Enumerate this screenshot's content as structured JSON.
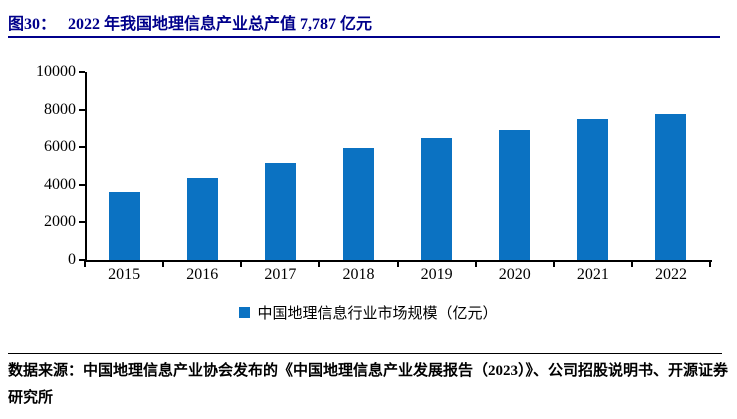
{
  "header": {
    "tag": "图30：",
    "title": "2022 年我国地理信息产业总产值 7,787 亿元"
  },
  "colors": {
    "accent_navy": "#00008B",
    "bar_blue": "#0B72C2",
    "axis_black": "#000000",
    "divider_black": "#000000"
  },
  "chart_data": {
    "type": "bar",
    "categories": [
      "2015",
      "2016",
      "2017",
      "2018",
      "2019",
      "2020",
      "2021",
      "2022"
    ],
    "values": [
      3600,
      4360,
      5180,
      5957,
      6476,
      6890,
      7524,
      7787
    ],
    "series_name": "中国地理信息行业市场规模（亿元）",
    "title": "2022 年我国地理信息产业总产值 7,787 亿元",
    "xlabel": "",
    "ylabel": "",
    "ylim": [
      0,
      10000
    ],
    "yticks": [
      0,
      2000,
      4000,
      6000,
      8000,
      10000
    ],
    "grid": false,
    "legend_position": "bottom",
    "bar_color": "#0B72C2"
  },
  "legend": {
    "label": "中国地理信息行业市场规模（亿元）"
  },
  "source_note": "数据来源：中国地理信息产业协会发布的《中国地理信息产业发展报告（2023）》、公司招股说明书、开源证券研究所"
}
